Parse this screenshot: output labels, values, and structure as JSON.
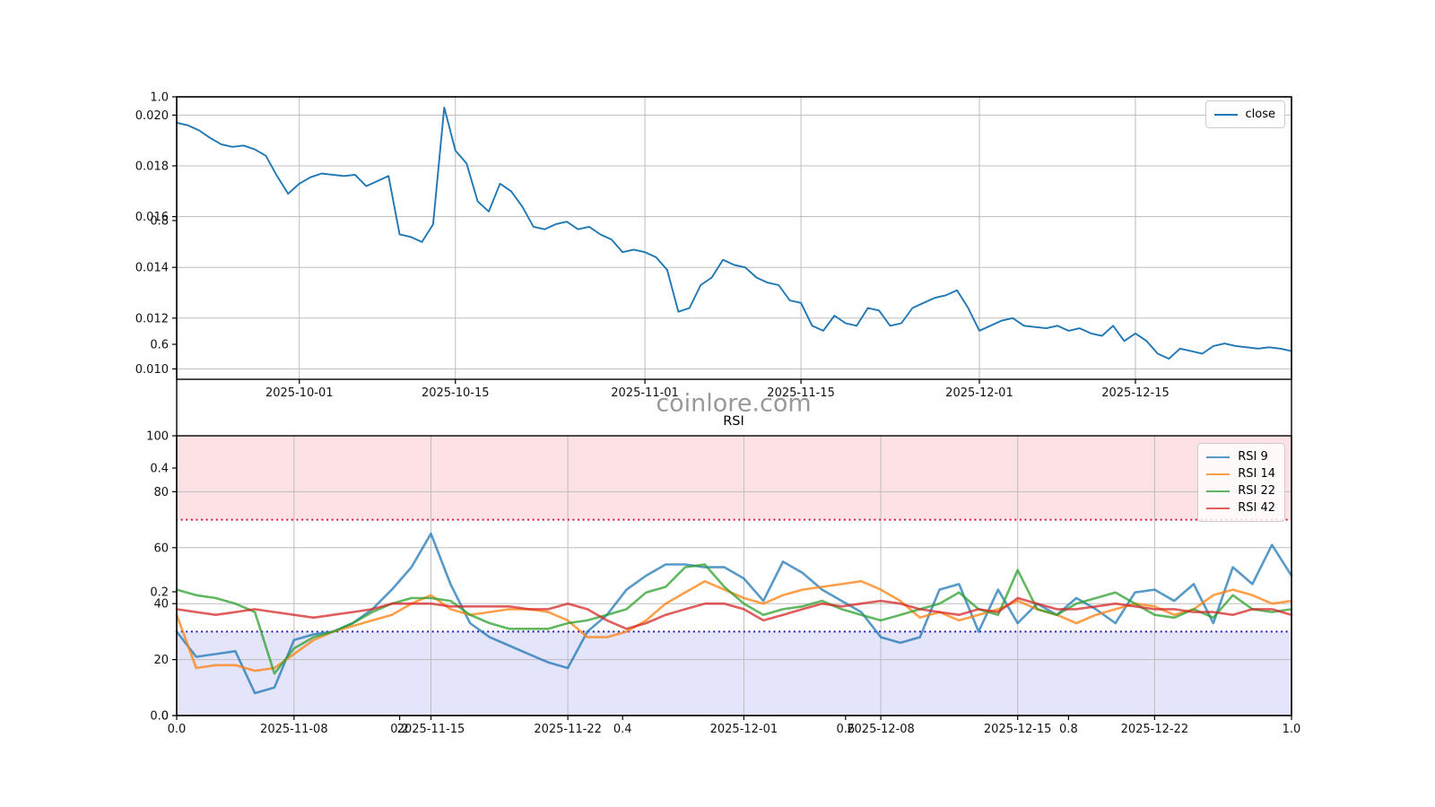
{
  "watermark": {
    "text": "coinlore.com",
    "color": "rgba(128,128,128,0.8)"
  },
  "overlay_axis": {
    "x_tick_labels": [
      "0.0",
      "0.2",
      "0.4",
      "0.6",
      "0.8",
      "1.0"
    ],
    "y_tick_labels": [
      "0.0",
      "0.2",
      "0.4",
      "0.6",
      "0.8",
      "1.0"
    ]
  },
  "style": {
    "grid_color": "#bdbdbd",
    "spine_color": "#000000",
    "tick_label_color": "#111111",
    "close_line_width": 1.9,
    "rsi_line_width": 2.6,
    "rsi_line_opacity": 0.75
  },
  "chart_data": [
    {
      "type": "line",
      "title": "",
      "x_start": "2025-09-20",
      "x_tick_labels": [
        "2025-10-01",
        "2025-10-15",
        "2025-11-01",
        "2025-11-15",
        "2025-12-01",
        "2025-12-15"
      ],
      "x_tick_positions": [
        11,
        25,
        42,
        56,
        72,
        86
      ],
      "y_tick_labels": [
        "0.010",
        "0.012",
        "0.014",
        "0.016",
        "0.018",
        "0.020"
      ],
      "y_ticks": [
        0.01,
        0.012,
        0.014,
        0.016,
        0.018,
        0.02
      ],
      "ylim": [
        0.00959,
        0.02072
      ],
      "grid": true,
      "legend_position": "upper right",
      "series": [
        {
          "name": "close",
          "color": "#1f77b4",
          "values": [
            0.0197,
            0.0196,
            0.0194,
            0.0191,
            0.01885,
            0.01875,
            0.0188,
            0.01865,
            0.0184,
            0.0176,
            0.0169,
            0.0173,
            0.01755,
            0.0177,
            0.01765,
            0.0176,
            0.01765,
            0.0172,
            0.0174,
            0.0176,
            0.0153,
            0.0152,
            0.015,
            0.0157,
            0.0203,
            0.0186,
            0.0181,
            0.0166,
            0.0162,
            0.0173,
            0.017,
            0.0164,
            0.0156,
            0.0155,
            0.0157,
            0.0158,
            0.0155,
            0.0156,
            0.0153,
            0.0151,
            0.0146,
            0.0147,
            0.0146,
            0.0144,
            0.0139,
            0.01225,
            0.0124,
            0.0133,
            0.0136,
            0.0143,
            0.0141,
            0.014,
            0.0136,
            0.0134,
            0.0133,
            0.0127,
            0.0126,
            0.0117,
            0.0115,
            0.0121,
            0.0118,
            0.0117,
            0.0124,
            0.0123,
            0.0117,
            0.0118,
            0.0124,
            0.0126,
            0.0128,
            0.0129,
            0.0131,
            0.0124,
            0.0115,
            0.0117,
            0.0119,
            0.012,
            0.0117,
            0.01165,
            0.0116,
            0.0117,
            0.0115,
            0.0116,
            0.0114,
            0.0113,
            0.0117,
            0.0111,
            0.0114,
            0.0111,
            0.0106,
            0.0104,
            0.0108,
            0.0107,
            0.0106,
            0.0109,
            0.011,
            0.0109,
            0.01085,
            0.0108,
            0.01085,
            0.0108,
            0.0107
          ]
        }
      ]
    },
    {
      "type": "line",
      "title": "RSI",
      "x_start": "2025-11-02",
      "x_tick_labels": [
        "2025-11-08",
        "2025-11-15",
        "2025-11-22",
        "2025-12-01",
        "2025-12-08",
        "2025-12-15",
        "2025-12-22"
      ],
      "x_tick_positions": [
        6,
        13,
        20,
        29,
        36,
        43,
        50
      ],
      "y_tick_labels": [
        "0",
        "20",
        "40",
        "60",
        "80",
        "100"
      ],
      "y_ticks": [
        0,
        20,
        40,
        60,
        80,
        100
      ],
      "ylim": [
        0,
        100
      ],
      "grid": true,
      "legend_position": "upper right",
      "bands": [
        {
          "name": "overbought-band",
          "from": 70,
          "to": 100,
          "color": "rgba(235,30,55,0.13)"
        },
        {
          "name": "oversold-band",
          "from": 0,
          "to": 30,
          "color": "rgba(45,45,215,0.13)"
        }
      ],
      "threshold_lines": [
        {
          "name": "overbought-threshold",
          "value": 70,
          "color": "#dc143c"
        },
        {
          "name": "oversold-threshold",
          "value": 30,
          "color": "#2121bd"
        }
      ],
      "series": [
        {
          "name": "RSI 9",
          "color": "#1f77b4",
          "values": [
            30,
            21,
            22,
            23,
            8,
            10,
            27,
            29,
            30,
            33,
            38,
            45,
            53,
            65,
            47,
            33,
            28,
            25,
            22,
            19,
            17,
            30,
            36,
            45,
            50,
            54,
            54,
            53,
            53,
            49,
            41,
            55,
            51,
            45,
            41,
            37,
            28,
            26,
            28,
            45,
            47,
            30,
            45,
            33,
            40,
            36,
            42,
            38,
            33,
            44,
            45,
            41,
            47,
            33,
            53,
            47,
            61,
            50
          ]
        },
        {
          "name": "RSI 14",
          "color": "#ff7f0e",
          "values": [
            36,
            17,
            18,
            18,
            16,
            17,
            22,
            27,
            30,
            32,
            34,
            36,
            40,
            43,
            38,
            36,
            37,
            38,
            38,
            37,
            34,
            28,
            28,
            30,
            34,
            40,
            44,
            48,
            45,
            42,
            40,
            43,
            45,
            46,
            47,
            48,
            45,
            41,
            35,
            37,
            34,
            36,
            38,
            41,
            38,
            36,
            33,
            36,
            38,
            40,
            39,
            36,
            38,
            43,
            45,
            43,
            40,
            41
          ]
        },
        {
          "name": "RSI 22",
          "color": "#2ca02c",
          "values": [
            45,
            43,
            42,
            40,
            37,
            15,
            24,
            28,
            30,
            33,
            37,
            40,
            42,
            42,
            41,
            36,
            33,
            31,
            31,
            31,
            33,
            34,
            36,
            38,
            44,
            46,
            53,
            54,
            46,
            40,
            36,
            38,
            39,
            41,
            38,
            36,
            34,
            36,
            38,
            40,
            44,
            38,
            36,
            52,
            38,
            36,
            40,
            42,
            44,
            40,
            36,
            35,
            38,
            35,
            43,
            38,
            37,
            38
          ]
        },
        {
          "name": "RSI 42",
          "color": "#d62728",
          "values": [
            38,
            37,
            36,
            37,
            38,
            37,
            36,
            35,
            36,
            37,
            38,
            40,
            40,
            40,
            39,
            39,
            39,
            39,
            38,
            38,
            40,
            38,
            34,
            31,
            33,
            36,
            38,
            40,
            40,
            38,
            34,
            36,
            38,
            40,
            39,
            40,
            41,
            40,
            38,
            37,
            36,
            38,
            37,
            42,
            40,
            38,
            38,
            39,
            40,
            39,
            38,
            38,
            37,
            37,
            36,
            38,
            38,
            36
          ]
        }
      ]
    }
  ]
}
